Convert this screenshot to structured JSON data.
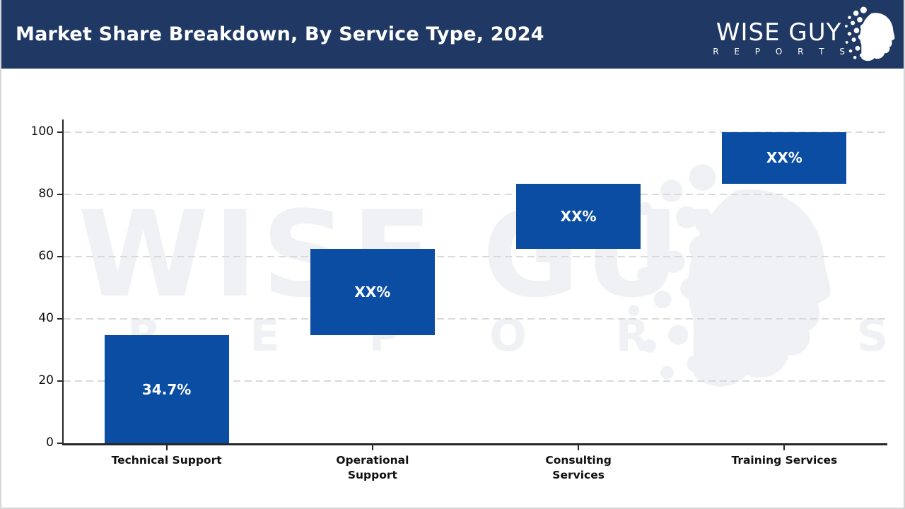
{
  "header": {
    "title": "Market Share Breakdown, By Service Type, 2024",
    "background_color": "#1f3864",
    "logo": {
      "line1": "WISE GUY",
      "line2": "R E P O R T S",
      "icon": "dotted-head-profile"
    }
  },
  "watermark": {
    "line1": "WISE GUY",
    "line2": "REPORTS",
    "line2_display": "R E P O R T S",
    "icon": "dotted-head-profile"
  },
  "chart_data": {
    "type": "bar",
    "subtype": "waterfall",
    "title": "Market Share Breakdown, By Service Type, 2024",
    "categories": [
      "Technical Support",
      "Operational Support",
      "Consulting Services",
      "Training Services"
    ],
    "category_label_lines": [
      [
        "Technical Support"
      ],
      [
        "Operational",
        "Support"
      ],
      [
        "Consulting",
        "Services"
      ],
      [
        "Training Services"
      ]
    ],
    "segments": [
      {
        "category": "Technical Support",
        "start": 0,
        "end": 34.7,
        "label": "34.7%"
      },
      {
        "category": "Operational Support",
        "start": 34.7,
        "end": 62.5,
        "label": "XX%"
      },
      {
        "category": "Consulting Services",
        "start": 62.5,
        "end": 83.5,
        "label": "XX%"
      },
      {
        "category": "Training Services",
        "start": 83.5,
        "end": 100,
        "label": "XX%"
      }
    ],
    "xlabel": "",
    "ylabel": "",
    "ylim": [
      0,
      100
    ],
    "yticks": [
      0,
      20,
      40,
      60,
      80,
      100
    ],
    "grid": "horizontal-dashed",
    "legend": "none",
    "bar_color": "#0b4da2",
    "value_label_color": "#ffffff",
    "axis_color": "#262626",
    "grid_color": "#d9d9d9"
  }
}
